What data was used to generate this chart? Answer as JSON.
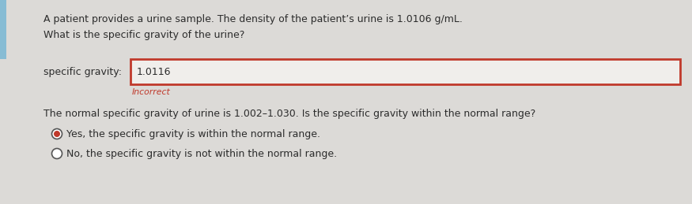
{
  "bg_color": "#dcdad7",
  "content_bg": "#f0eeeb",
  "line1": "A patient provides a urine sample. The density of the patient’s urine is 1.0106 g/mL.",
  "line2": "What is the specific gravity of the urine?",
  "label_text": "specific gravity:",
  "input_value": "1.0116",
  "incorrect_text": "Incorrect",
  "incorrect_color": "#c0392b",
  "normal_range_text": "The normal specific gravity of urine is 1.002–1.030. Is the specific gravity within the normal range?",
  "option1": "Yes, the specific gravity is within the normal range.",
  "option2": "No, the specific gravity is not within the normal range.",
  "box_border_color": "#c0392b",
  "box_fill_color": "#f0eeeb",
  "text_color": "#2c2c2c",
  "left_bar_color": "#87bcd4",
  "font_size_main": 9.0,
  "font_size_small": 7.8
}
